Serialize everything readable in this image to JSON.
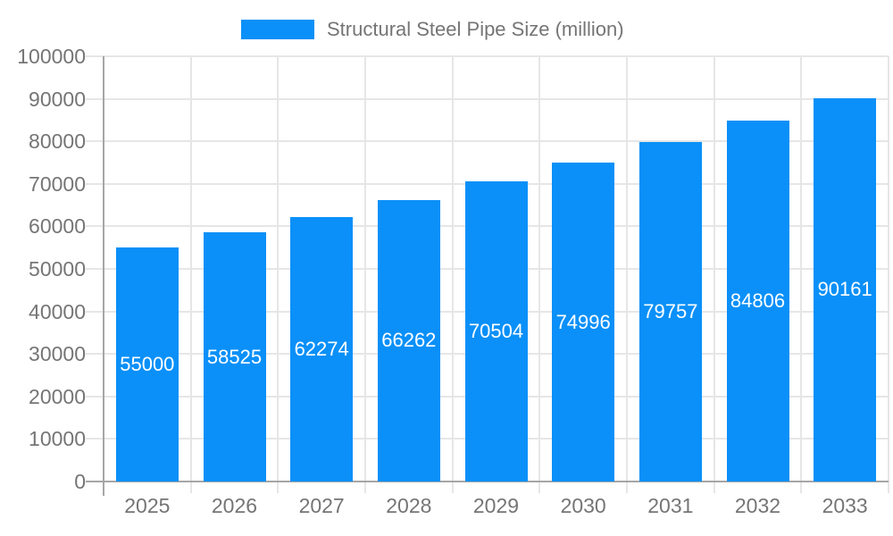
{
  "legend": {
    "label": "Structural Steel Pipe Size (million)"
  },
  "chart_data": {
    "type": "bar",
    "title": "",
    "xlabel": "",
    "ylabel": "",
    "legend_position": "top",
    "legend_entries": [
      "Structural Steel Pipe Size (million)"
    ],
    "categories": [
      "2025",
      "2026",
      "2027",
      "2028",
      "2029",
      "2030",
      "2031",
      "2032",
      "2033"
    ],
    "series": [
      {
        "name": "Structural Steel Pipe Size (million)",
        "values": [
          55000,
          58525,
          62274,
          66262,
          70504,
          74996,
          79757,
          84806,
          90161
        ]
      }
    ],
    "value_labels": {
      "visible": true,
      "position": "inside-center",
      "color": "#ffffff"
    },
    "ylim": [
      0,
      100000
    ],
    "ytick_step": 10000,
    "ytick_labels": [
      "0",
      "10000",
      "20000",
      "30000",
      "40000",
      "50000",
      "60000",
      "70000",
      "80000",
      "90000",
      "100000"
    ],
    "grid": true,
    "colors": {
      "bar": "#0a90f8",
      "gridline": "#e6e6e6",
      "axis": "#a6a6a6",
      "tick_label": "#757575",
      "legend_label": "#757575",
      "value_label": "#ffffff",
      "background": "#ffffff"
    }
  }
}
